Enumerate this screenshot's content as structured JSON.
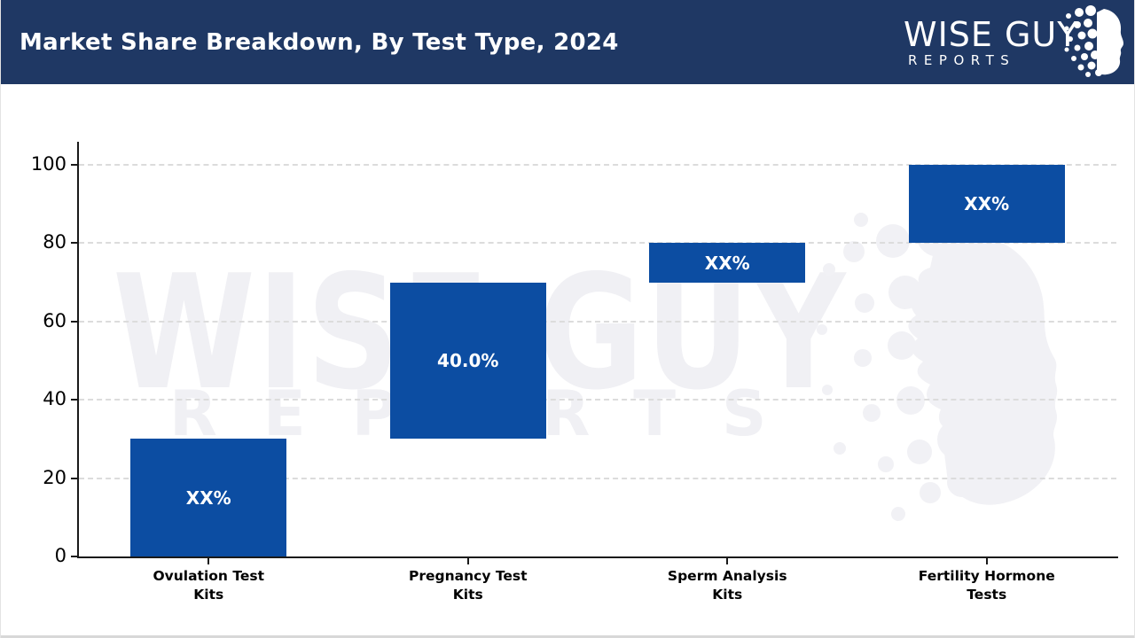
{
  "header": {
    "title": "Market Share Breakdown, By Test Type, 2024",
    "background_color": "#1f3864"
  },
  "logo": {
    "line1": "WISE GUY",
    "line2": "REPORTS",
    "head_icon": "dotted-head-profile"
  },
  "watermark": {
    "line1": "WISE GUY",
    "line2": "REPORTS",
    "head_icon": "dotted-head-profile"
  },
  "chart_data": {
    "type": "bar",
    "subtype": "waterfall",
    "title": "Market Share Breakdown, By Test Type, 2024",
    "categories": [
      "Ovulation Test\nKits",
      "Pregnancy Test\nKits",
      "Sperm Analysis\nKits",
      "Fertility Hormone\nTests"
    ],
    "segments": [
      {
        "category": "Ovulation Test Kits",
        "start": 0,
        "end": 30,
        "label": "XX%"
      },
      {
        "category": "Pregnancy Test Kits",
        "start": 30,
        "end": 70,
        "label": "40.0%"
      },
      {
        "category": "Sperm Analysis Kits",
        "start": 70,
        "end": 80,
        "label": "XX%"
      },
      {
        "category": "Fertility Hormone Tests",
        "start": 80,
        "end": 100,
        "label": "XX%"
      }
    ],
    "yticks": [
      0,
      20,
      40,
      60,
      80,
      100
    ],
    "ylim": [
      0,
      106
    ],
    "xlabel": "",
    "ylabel": "",
    "grid": "horizontal-dashed",
    "legend": "none",
    "bar_color": "#0c4da2",
    "value_label_color": "#ffffff",
    "axis_color": "#1a1a1a",
    "gridline_color": "#dcdcdc"
  }
}
